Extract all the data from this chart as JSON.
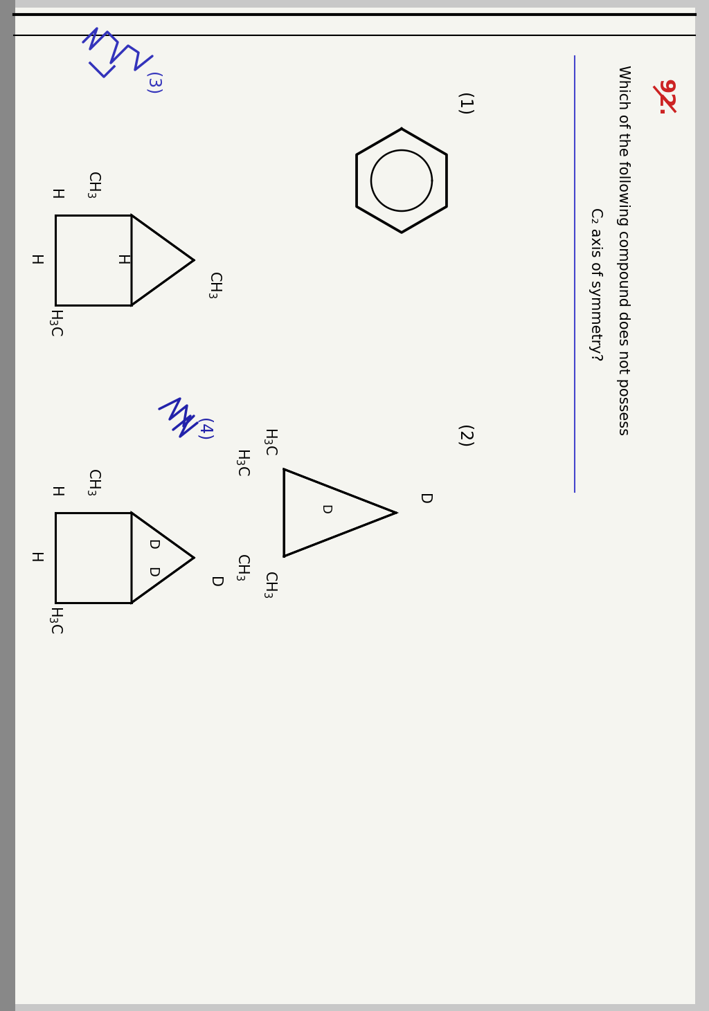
{
  "bg_color": "#d8d8d8",
  "page_bg": "#f0f0f0",
  "lw": 2.2,
  "fs": 15,
  "fs_label": 13,
  "structures": {
    "opt1_label": "(1)",
    "opt2_label": "(2)",
    "opt3_label": "(3)",
    "opt4_label": "(4)"
  },
  "question_text_line1": "Which of the following compound does not possess",
  "question_text_line2": "C₂ axis of symmetry?",
  "question_num": "92."
}
